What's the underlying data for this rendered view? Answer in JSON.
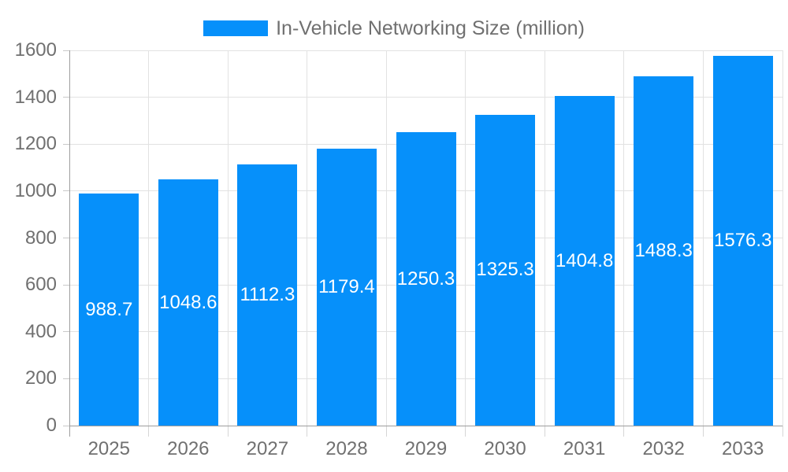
{
  "chart_data": {
    "type": "bar",
    "title": "",
    "series_name": "In-Vehicle Networking Size (million)",
    "categories": [
      "2025",
      "2026",
      "2027",
      "2028",
      "2029",
      "2030",
      "2031",
      "2032",
      "2033"
    ],
    "values": [
      988.7,
      1048.6,
      1112.3,
      1179.4,
      1250.3,
      1325.3,
      1404.8,
      1488.3,
      1576.3
    ],
    "xlabel": "",
    "ylabel": "",
    "ylim": [
      0,
      1600
    ],
    "ytick_step": 200,
    "ytick_labels": [
      "0",
      "200",
      "400",
      "600",
      "800",
      "1000",
      "1200",
      "1400",
      "1600"
    ],
    "grid": true,
    "legend_position": "top",
    "value_label_position": "inside-center",
    "colors": {
      "bar": "#0690fa",
      "value_label": "#ffffff",
      "axis_label": "#707070",
      "legend_label": "#707070",
      "gridline": "#e2e2e2",
      "axis_line": "#9e9e9e",
      "x_tick": "#d6d6d6",
      "y_tick": "#c9c9c9",
      "background": "#ffffff"
    }
  }
}
